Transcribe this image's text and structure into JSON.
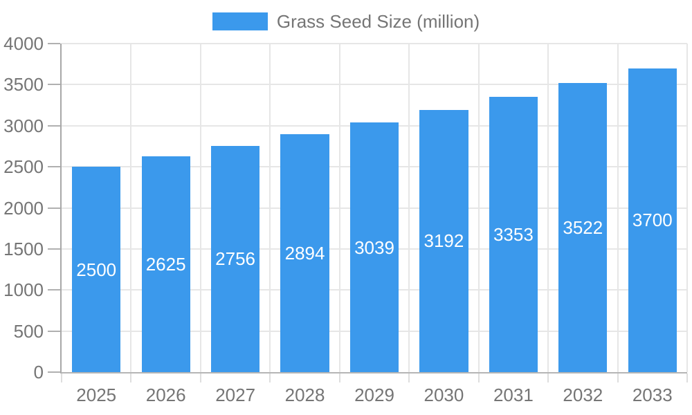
{
  "chart_data": {
    "type": "bar",
    "title": "",
    "legend": "Grass Seed Size (million)",
    "legend_position": "top-center",
    "categories": [
      "2025",
      "2026",
      "2027",
      "2028",
      "2029",
      "2030",
      "2031",
      "2032",
      "2033"
    ],
    "values": [
      2500,
      2625,
      2756,
      2894,
      3039,
      3192,
      3353,
      3522,
      3700
    ],
    "xlabel": "",
    "ylabel": "",
    "ylim": [
      0,
      4000
    ],
    "yticks": [
      0,
      500,
      1000,
      1500,
      2000,
      2500,
      3000,
      3500,
      4000
    ],
    "grid": true,
    "value_labels_inside_bars": true,
    "colors": {
      "bar": "#3b99ec",
      "bar_value_text": "#ffffff",
      "axis_text": "#757575",
      "gridline": "#e6e6e6",
      "axis_line": "#adadad",
      "background": "#ffffff"
    }
  }
}
